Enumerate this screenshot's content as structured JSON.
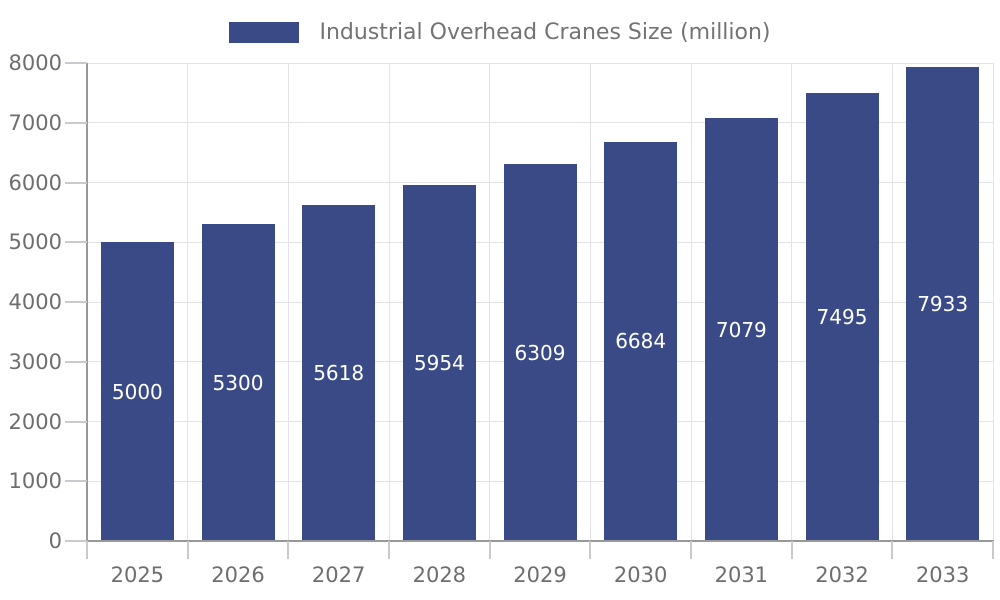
{
  "legend": {
    "label": "Industrial Overhead Cranes Size (million)"
  },
  "colors": {
    "bar": "#3A4A86",
    "bar_label": "#FFFFFF",
    "grid": "#E2E2E7",
    "tick": "#C9C9CE",
    "axis": "#97979C",
    "axis_text": "#6E6E6E",
    "legend_text": "#737373",
    "background": "#FFFFFF"
  },
  "chart_data": {
    "type": "bar",
    "title": "Industrial Overhead Cranes Size (million)",
    "categories": [
      "2025",
      "2026",
      "2027",
      "2028",
      "2029",
      "2030",
      "2031",
      "2032",
      "2033"
    ],
    "values": [
      5000,
      5300,
      5618,
      5954,
      6309,
      6684,
      7079,
      7495,
      7933
    ],
    "series_name": "Industrial Overhead Cranes Size (million)",
    "xlabel": "",
    "ylabel": "",
    "ylim": [
      0,
      8000
    ],
    "ytick_step": 1000,
    "ytick_labels": [
      "0",
      "1000",
      "2000",
      "3000",
      "4000",
      "5000",
      "6000",
      "7000",
      "8000"
    ],
    "grid": true,
    "legend_position": "top-center",
    "value_label_position": "inside-center"
  }
}
